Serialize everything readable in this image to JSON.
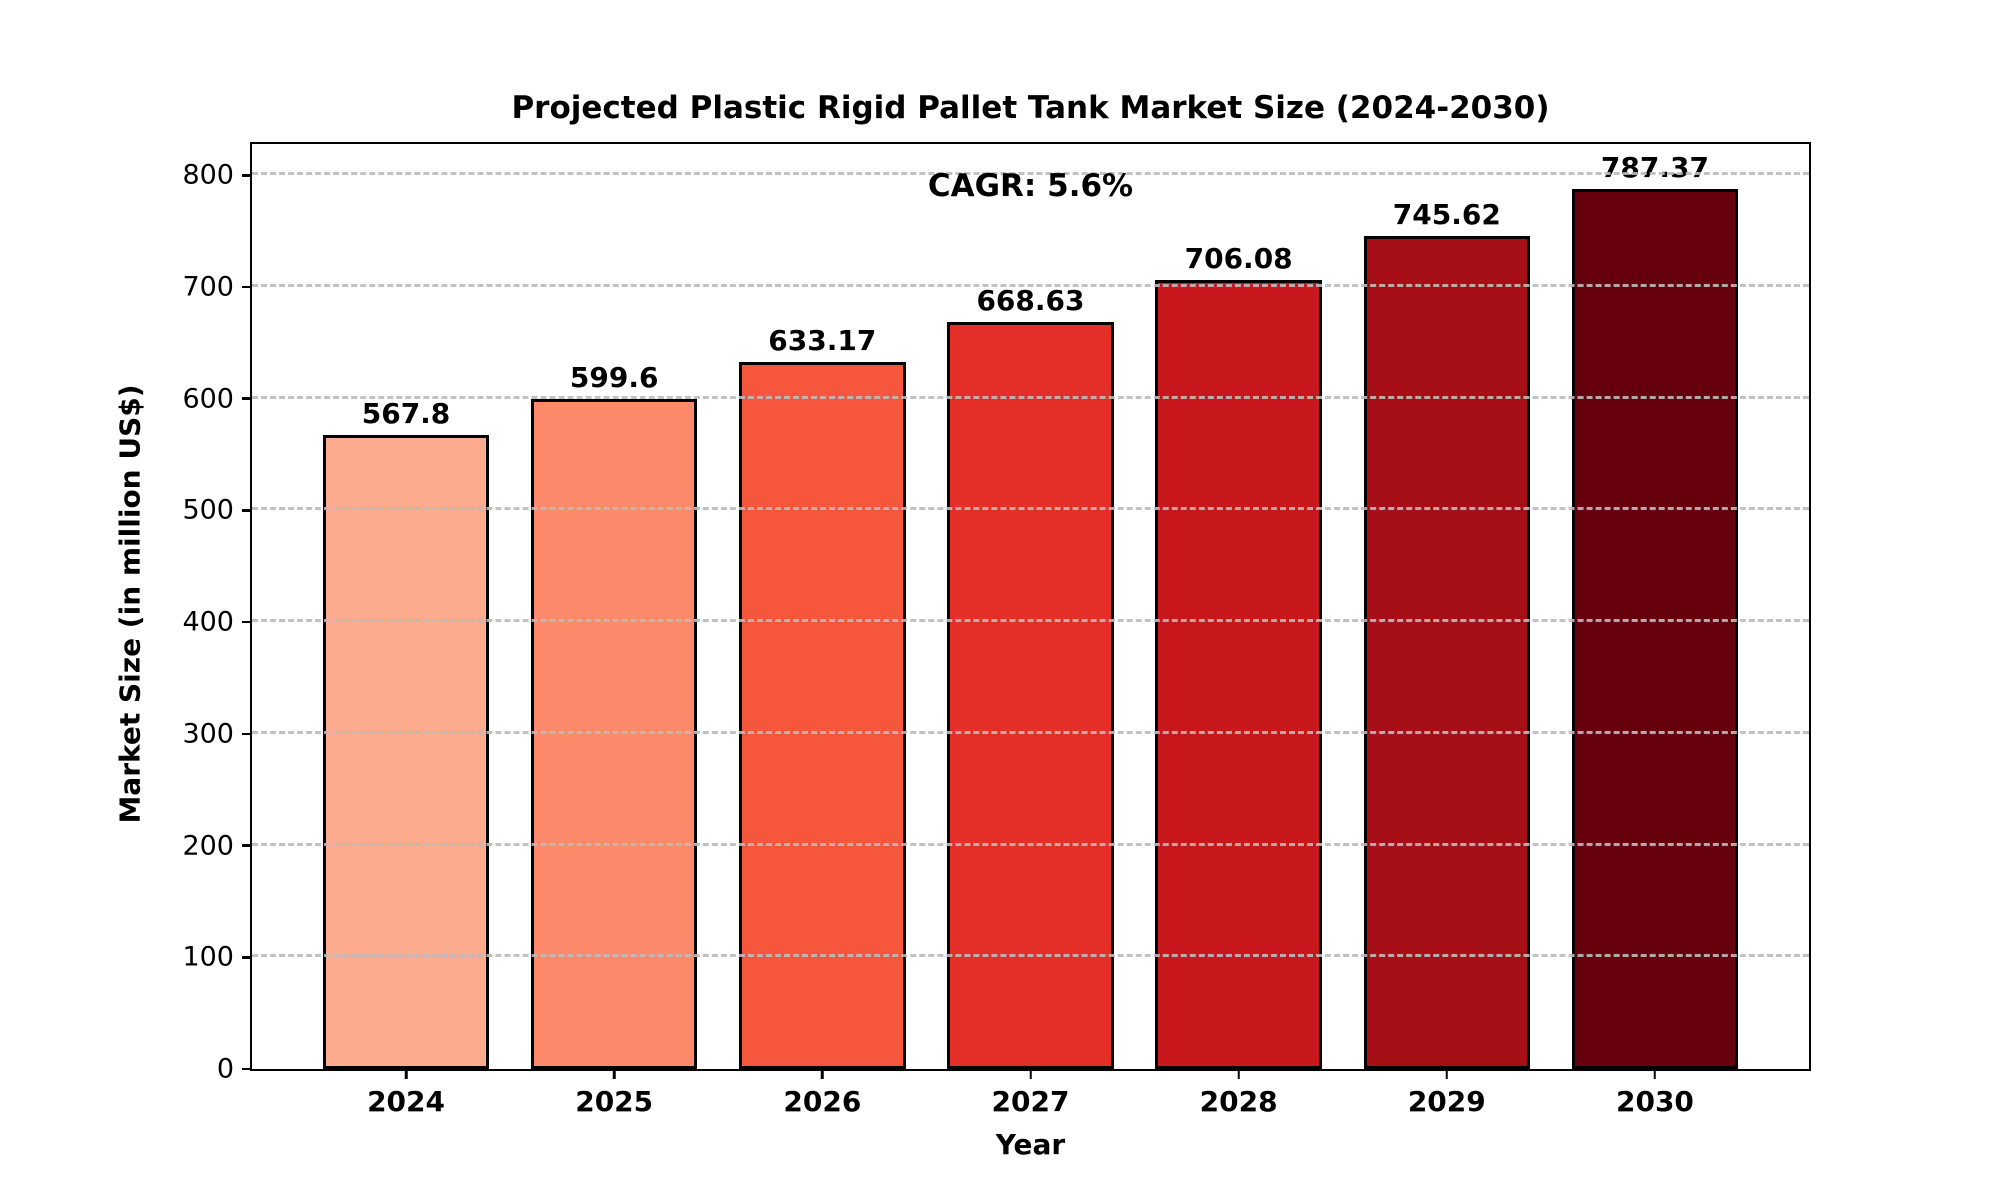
{
  "figure": {
    "title": "Projected Plastic Rigid Pallet Tank Market Size (2024-2030)",
    "annotation": "CAGR: 5.6%"
  },
  "chart_data": {
    "type": "bar",
    "title": "Projected Plastic Rigid Pallet Tank Market Size (2024-2030)",
    "xlabel": "Year",
    "ylabel": "Market Size (in million US$)",
    "categories": [
      "2024",
      "2025",
      "2026",
      "2027",
      "2028",
      "2029",
      "2030"
    ],
    "values": [
      567.8,
      599.6,
      633.17,
      668.63,
      706.08,
      745.62,
      787.37
    ],
    "bar_labels": [
      "567.8",
      "599.6",
      "633.17",
      "668.63",
      "706.08",
      "745.62",
      "787.37"
    ],
    "bar_colors": [
      "#fcab8f",
      "#fc8a6a",
      "#f6573c",
      "#e32f27",
      "#c9181d",
      "#a50f15",
      "#67000d"
    ],
    "bar_edge_color": "#000000",
    "annotation": "CAGR: 5.6%",
    "yticks": [
      0,
      100,
      200,
      300,
      400,
      500,
      600,
      700,
      800
    ],
    "ylim": [
      0,
      828
    ],
    "grid": "horizontal-dashed",
    "gridline_color": "#bbbbbb",
    "legend": "none"
  }
}
